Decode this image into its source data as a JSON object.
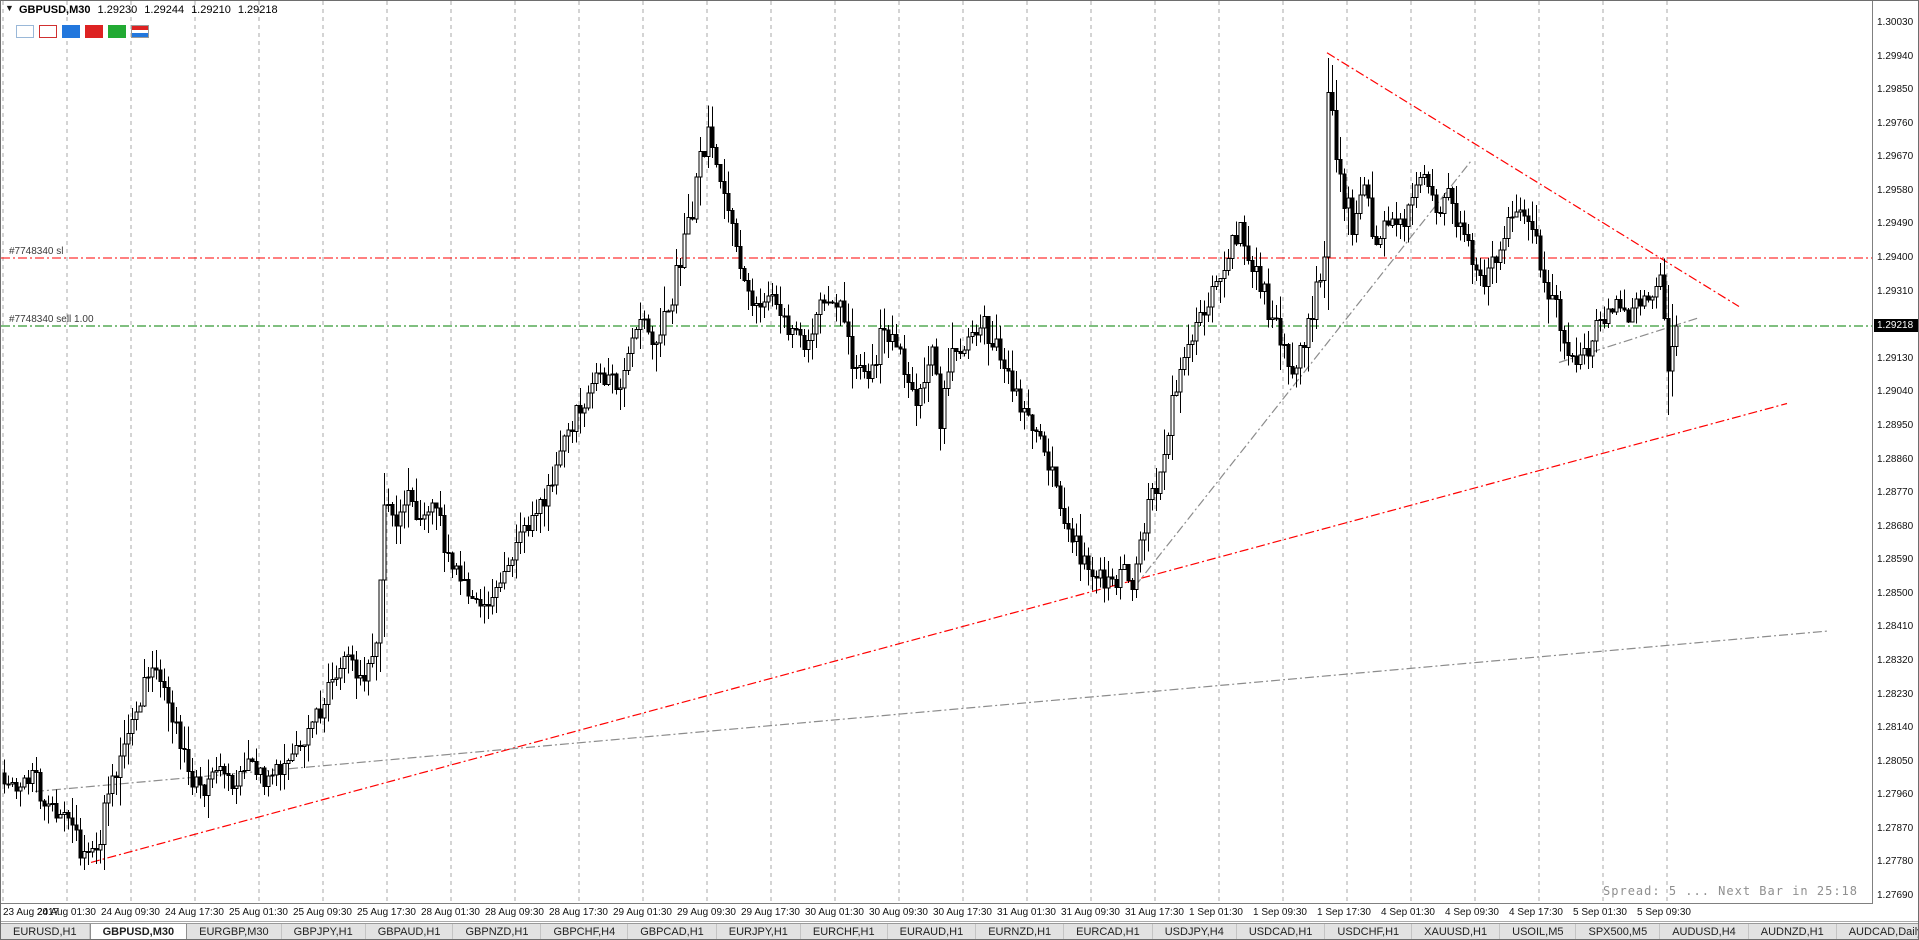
{
  "header": {
    "symbol": "GBPUSD,M30",
    "open": "1.29230",
    "high": "1.29244",
    "low": "1.29210",
    "close": "1.29218"
  },
  "icons": {
    "one_click_toggle": "▼"
  },
  "toolbar": {
    "buttons": [
      {
        "name": "empty-swatch-button",
        "fill": "#ffffff",
        "border": "#9ab8d8"
      },
      {
        "name": "red-outline-swatch-button",
        "fill": "#ffffff",
        "border": "#d03030"
      },
      {
        "name": "blue-swatch-button",
        "fill": "#2277dd",
        "border": "#2277dd"
      },
      {
        "name": "red-swatch-button",
        "fill": "#dd2222",
        "border": "#dd2222"
      },
      {
        "name": "green-swatch-button",
        "fill": "#22aa33",
        "border": "#22aa33"
      },
      {
        "name": "striped-swatch-button",
        "stripes": [
          "#dd2222",
          "#ffffff",
          "#2277dd"
        ]
      }
    ]
  },
  "chart_data": {
    "type": "candlestick",
    "title": "GBPUSD,M30",
    "symbol": "GBPUSD",
    "timeframe": "M30",
    "seed": 7,
    "bars_total": 419,
    "current_price": "1.29218",
    "status_text": "Spread: 5 ... Next Bar in 25:18",
    "price_axis": {
      "min": 1.2769,
      "max": 1.3003,
      "step": 0.0009,
      "labels": [
        "1.30030",
        "1.29940",
        "1.29850",
        "1.29760",
        "1.29670",
        "1.29580",
        "1.29490",
        "1.29400",
        "1.29310",
        "1.29220",
        "1.29130",
        "1.29040",
        "1.28950",
        "1.28860",
        "1.28770",
        "1.28680",
        "1.28590",
        "1.28500",
        "1.28410",
        "1.28320",
        "1.28230",
        "1.28140",
        "1.28050",
        "1.27960",
        "1.27870",
        "1.27780",
        "1.27690"
      ]
    },
    "time_axis": {
      "bars_per_label": 16,
      "labels": [
        "23 Aug 2017",
        "24 Aug 01:30",
        "24 Aug 09:30",
        "24 Aug 17:30",
        "25 Aug 01:30",
        "25 Aug 09:30",
        "25 Aug 17:30",
        "28 Aug 01:30",
        "28 Aug 09:30",
        "28 Aug 17:30",
        "29 Aug 01:30",
        "29 Aug 09:30",
        "29 Aug 17:30",
        "30 Aug 01:30",
        "30 Aug 09:30",
        "30 Aug 17:30",
        "31 Aug 01:30",
        "31 Aug 09:30",
        "31 Aug 17:30",
        "1 Sep 01:30",
        "1 Sep 09:30",
        "1 Sep 17:30",
        "4 Sep 01:30",
        "4 Sep 09:30",
        "4 Sep 17:30",
        "5 Sep 01:30",
        "5 Sep 09:30"
      ]
    },
    "horizontal_lines": [
      {
        "price": 1.294,
        "color": "#ff0000",
        "style": "dashdot",
        "label": "#7748340 sl"
      },
      {
        "price": 1.29218,
        "color": "#007f00",
        "style": "dashdot",
        "label": "#7748340 sell 1.00"
      }
    ],
    "trend_lines": [
      {
        "from": [
          331,
          1.2995
        ],
        "to": [
          434,
          1.2927
        ],
        "color": "#ff0000"
      },
      {
        "from": [
          22,
          1.2778
        ],
        "to": [
          446,
          1.2901
        ],
        "color": "#ff0000"
      },
      {
        "from": [
          8,
          1.2797
        ],
        "to": [
          456,
          1.284
        ],
        "color": "#8c8c8c"
      },
      {
        "from": [
          283,
          1.2852
        ],
        "to": [
          367,
          1.2966
        ],
        "color": "#8c8c8c"
      },
      {
        "from": [
          389,
          1.2912
        ],
        "to": [
          424,
          1.2924
        ],
        "color": "#8c8c8c"
      }
    ],
    "waypoints": [
      [
        0,
        1.2802
      ],
      [
        4,
        1.2797
      ],
      [
        8,
        1.2801
      ],
      [
        12,
        1.2794
      ],
      [
        16,
        1.2789
      ],
      [
        19,
        1.2784
      ],
      [
        22,
        1.2779
      ],
      [
        25,
        1.2786
      ],
      [
        28,
        1.2798
      ],
      [
        31,
        1.2808
      ],
      [
        34,
        1.282
      ],
      [
        38,
        1.2831
      ],
      [
        41,
        1.2826
      ],
      [
        44,
        1.2812
      ],
      [
        47,
        1.2801
      ],
      [
        51,
        1.2797
      ],
      [
        55,
        1.2803
      ],
      [
        59,
        1.2799
      ],
      [
        63,
        1.2804
      ],
      [
        67,
        1.28
      ],
      [
        71,
        1.2806
      ],
      [
        75,
        1.2811
      ],
      [
        79,
        1.2817
      ],
      [
        83,
        1.2826
      ],
      [
        87,
        1.2834
      ],
      [
        90,
        1.2828
      ],
      [
        93,
        1.2833
      ],
      [
        94,
        1.284
      ],
      [
        96,
        1.2877
      ],
      [
        99,
        1.2867
      ],
      [
        102,
        1.2876
      ],
      [
        105,
        1.287
      ],
      [
        108,
        1.2876
      ],
      [
        111,
        1.2863
      ],
      [
        114,
        1.2856
      ],
      [
        118,
        1.2849
      ],
      [
        122,
        1.2845
      ],
      [
        126,
        1.2855
      ],
      [
        130,
        1.2864
      ],
      [
        134,
        1.287
      ],
      [
        138,
        1.2882
      ],
      [
        142,
        1.2893
      ],
      [
        146,
        1.2903
      ],
      [
        150,
        1.291
      ],
      [
        154,
        1.2905
      ],
      [
        158,
        1.2916
      ],
      [
        161,
        1.2924
      ],
      [
        164,
        1.2913
      ],
      [
        168,
        1.2931
      ],
      [
        172,
        1.2947
      ],
      [
        175,
        1.2965
      ],
      [
        177,
        1.2972
      ],
      [
        180,
        1.296
      ],
      [
        183,
        1.295
      ],
      [
        186,
        1.2937
      ],
      [
        189,
        1.2925
      ],
      [
        193,
        1.2929
      ],
      [
        197,
        1.2921
      ],
      [
        201,
        1.2917
      ],
      [
        205,
        1.2927
      ],
      [
        209,
        1.2929
      ],
      [
        213,
        1.2911
      ],
      [
        217,
        1.2908
      ],
      [
        221,
        1.2921
      ],
      [
        225,
        1.2915
      ],
      [
        229,
        1.2902
      ],
      [
        233,
        1.2914
      ],
      [
        235,
        1.2897
      ],
      [
        238,
        1.2913
      ],
      [
        242,
        1.2918
      ],
      [
        246,
        1.2922
      ],
      [
        250,
        1.2913
      ],
      [
        254,
        1.2903
      ],
      [
        258,
        1.2895
      ],
      [
        262,
        1.2885
      ],
      [
        266,
        1.2871
      ],
      [
        270,
        1.2861
      ],
      [
        274,
        1.2855
      ],
      [
        278,
        1.2852
      ],
      [
        281,
        1.2858
      ],
      [
        283,
        1.2853
      ],
      [
        286,
        1.2867
      ],
      [
        290,
        1.2885
      ],
      [
        294,
        1.2907
      ],
      [
        298,
        1.2921
      ],
      [
        302,
        1.2929
      ],
      [
        306,
        1.2939
      ],
      [
        310,
        1.2947
      ],
      [
        313,
        1.2938
      ],
      [
        316,
        1.293
      ],
      [
        320,
        1.2917
      ],
      [
        323,
        1.291
      ],
      [
        326,
        1.2919
      ],
      [
        329,
        1.2931
      ],
      [
        331,
        1.2941
      ],
      [
        332,
        1.2984
      ],
      [
        334,
        1.2971
      ],
      [
        336,
        1.2957
      ],
      [
        338,
        1.2949
      ],
      [
        341,
        1.2957
      ],
      [
        344,
        1.2946
      ],
      [
        347,
        1.2951
      ],
      [
        350,
        1.2948
      ],
      [
        353,
        1.2958
      ],
      [
        356,
        1.2962
      ],
      [
        359,
        1.2953
      ],
      [
        362,
        1.2957
      ],
      [
        365,
        1.2948
      ],
      [
        368,
        1.2938
      ],
      [
        371,
        1.2934
      ],
      [
        374,
        1.2941
      ],
      [
        377,
        1.2951
      ],
      [
        380,
        1.2955
      ],
      [
        383,
        1.2946
      ],
      [
        386,
        1.2934
      ],
      [
        389,
        1.2926
      ],
      [
        392,
        1.2917
      ],
      [
        395,
        1.2913
      ],
      [
        398,
        1.2919
      ],
      [
        401,
        1.2925
      ],
      [
        404,
        1.2928
      ],
      [
        407,
        1.2923
      ],
      [
        410,
        1.2928
      ],
      [
        413,
        1.2932
      ],
      [
        415,
        1.2934
      ],
      [
        416,
        1.2924
      ],
      [
        417,
        1.2911
      ],
      [
        418,
        1.2922
      ]
    ]
  },
  "tabs": {
    "items": [
      {
        "label": "EURUSD,H1",
        "active": false
      },
      {
        "label": "GBPUSD,M30",
        "active": true
      },
      {
        "label": "EURGBP,M30",
        "active": false
      },
      {
        "label": "GBPJPY,H1",
        "active": false
      },
      {
        "label": "GBPAUD,H1",
        "active": false
      },
      {
        "label": "GBPNZD,H1",
        "active": false
      },
      {
        "label": "GBPCHF,H4",
        "active": false
      },
      {
        "label": "GBPCAD,H1",
        "active": false
      },
      {
        "label": "EURJPY,H1",
        "active": false
      },
      {
        "label": "EURCHF,H1",
        "active": false
      },
      {
        "label": "EURAUD,H1",
        "active": false
      },
      {
        "label": "EURNZD,H1",
        "active": false
      },
      {
        "label": "EURCAD,H1",
        "active": false
      },
      {
        "label": "USDJPY,H4",
        "active": false
      },
      {
        "label": "USDCAD,H1",
        "active": false
      },
      {
        "label": "USDCHF,H1",
        "active": false
      },
      {
        "label": "XAUUSD,H1",
        "active": false
      },
      {
        "label": "USOIL,M5",
        "active": false
      },
      {
        "label": "SPX500,M5",
        "active": false
      },
      {
        "label": "AUDUSD,H4",
        "active": false
      },
      {
        "label": "AUDNZD,H1",
        "active": false
      },
      {
        "label": "AUDCAD,Daily",
        "active": false
      }
    ]
  }
}
